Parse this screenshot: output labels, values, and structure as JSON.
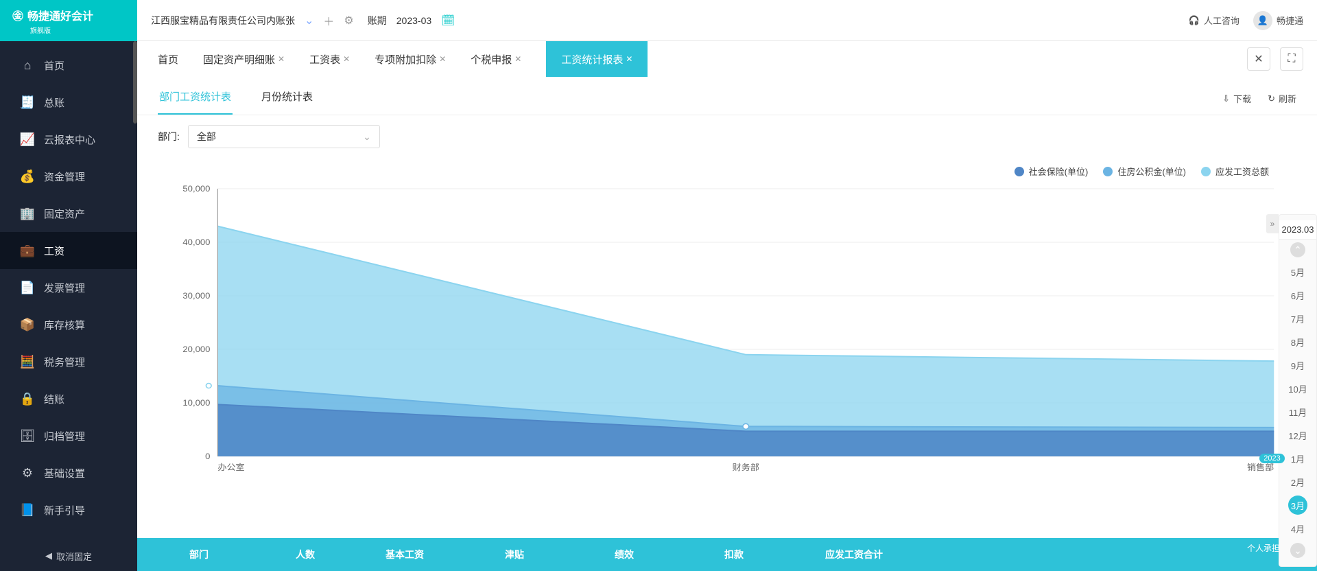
{
  "logo": {
    "name": "畅捷通好会计",
    "edition": "旗舰版"
  },
  "sidebar": {
    "items": [
      {
        "icon": "⌂",
        "label": "首页"
      },
      {
        "icon": "🧾",
        "label": "总账"
      },
      {
        "icon": "📈",
        "label": "云报表中心"
      },
      {
        "icon": "💰",
        "label": "资金管理"
      },
      {
        "icon": "🏢",
        "label": "固定资产"
      },
      {
        "icon": "💼",
        "label": "工资"
      },
      {
        "icon": "📄",
        "label": "发票管理"
      },
      {
        "icon": "📦",
        "label": "库存核算"
      },
      {
        "icon": "🧮",
        "label": "税务管理"
      },
      {
        "icon": "🔒",
        "label": "结账"
      },
      {
        "icon": "🗄",
        "label": "归档管理"
      },
      {
        "icon": "⚙",
        "label": "基础设置"
      },
      {
        "icon": "📘",
        "label": "新手引导"
      }
    ],
    "active_index": 5,
    "footer": "取消固定"
  },
  "header": {
    "company": "江西服宝精品有限责任公司内账张",
    "period_label": "账期",
    "period_value": "2023-03",
    "support": "人工咨询",
    "user": "畅捷通"
  },
  "tabs": {
    "items": [
      {
        "label": "首页",
        "closable": false
      },
      {
        "label": "固定资产明细账",
        "closable": true
      },
      {
        "label": "工资表",
        "closable": true
      },
      {
        "label": "专项附加扣除",
        "closable": true
      },
      {
        "label": "个税申报",
        "closable": true
      },
      {
        "label": "工资统计报表",
        "closable": true
      }
    ],
    "active_index": 5
  },
  "sub_tabs": {
    "items": [
      "部门工资统计表",
      "月份统计表"
    ],
    "active_index": 0,
    "actions": {
      "download": "下载",
      "refresh": "刷新"
    }
  },
  "filter": {
    "label": "部门:",
    "value": "全部"
  },
  "chart": {
    "type": "area",
    "legend": [
      {
        "label": "社会保险(单位)",
        "color": "#4f86c6"
      },
      {
        "label": "住房公积金(单位)",
        "color": "#6bb4e3"
      },
      {
        "label": "应发工资总额",
        "color": "#8bd4ef"
      }
    ],
    "categories": [
      "办公室",
      "财务部",
      "销售部"
    ],
    "series": {
      "social": [
        9700,
        4700,
        4700
      ],
      "housing": [
        13200,
        5600,
        5400
      ],
      "payable": [
        43000,
        19000,
        17800
      ]
    },
    "ylim": [
      0,
      50000
    ],
    "ytick_step": 10000,
    "ylabels": [
      "0",
      "10,000",
      "20,000",
      "30,000",
      "40,000",
      "50,000"
    ],
    "grid_color": "#eeeeee",
    "axis_color": "#666666",
    "axis_font_size": 12,
    "marker_color": "#8bd4ef",
    "background": "#ffffff"
  },
  "table": {
    "columns": [
      "部门",
      "人数",
      "基本工资",
      "津贴",
      "绩效",
      "扣款",
      "应发工资合计"
    ],
    "right_label": "个人承担社保",
    "header_bg": "#2ec2d8"
  },
  "month_rail": {
    "head": "2023.03",
    "year_badge": "2023",
    "months": [
      "5月",
      "6月",
      "7月",
      "8月",
      "9月",
      "10月",
      "11月",
      "12月",
      "1月",
      "2月",
      "3月",
      "4月"
    ],
    "active_index": 10,
    "badge_index": 8
  },
  "colors": {
    "primary": "#2ec2d8",
    "sidebar_bg": "#1c2434",
    "logo_bg": "#00c6c6"
  }
}
